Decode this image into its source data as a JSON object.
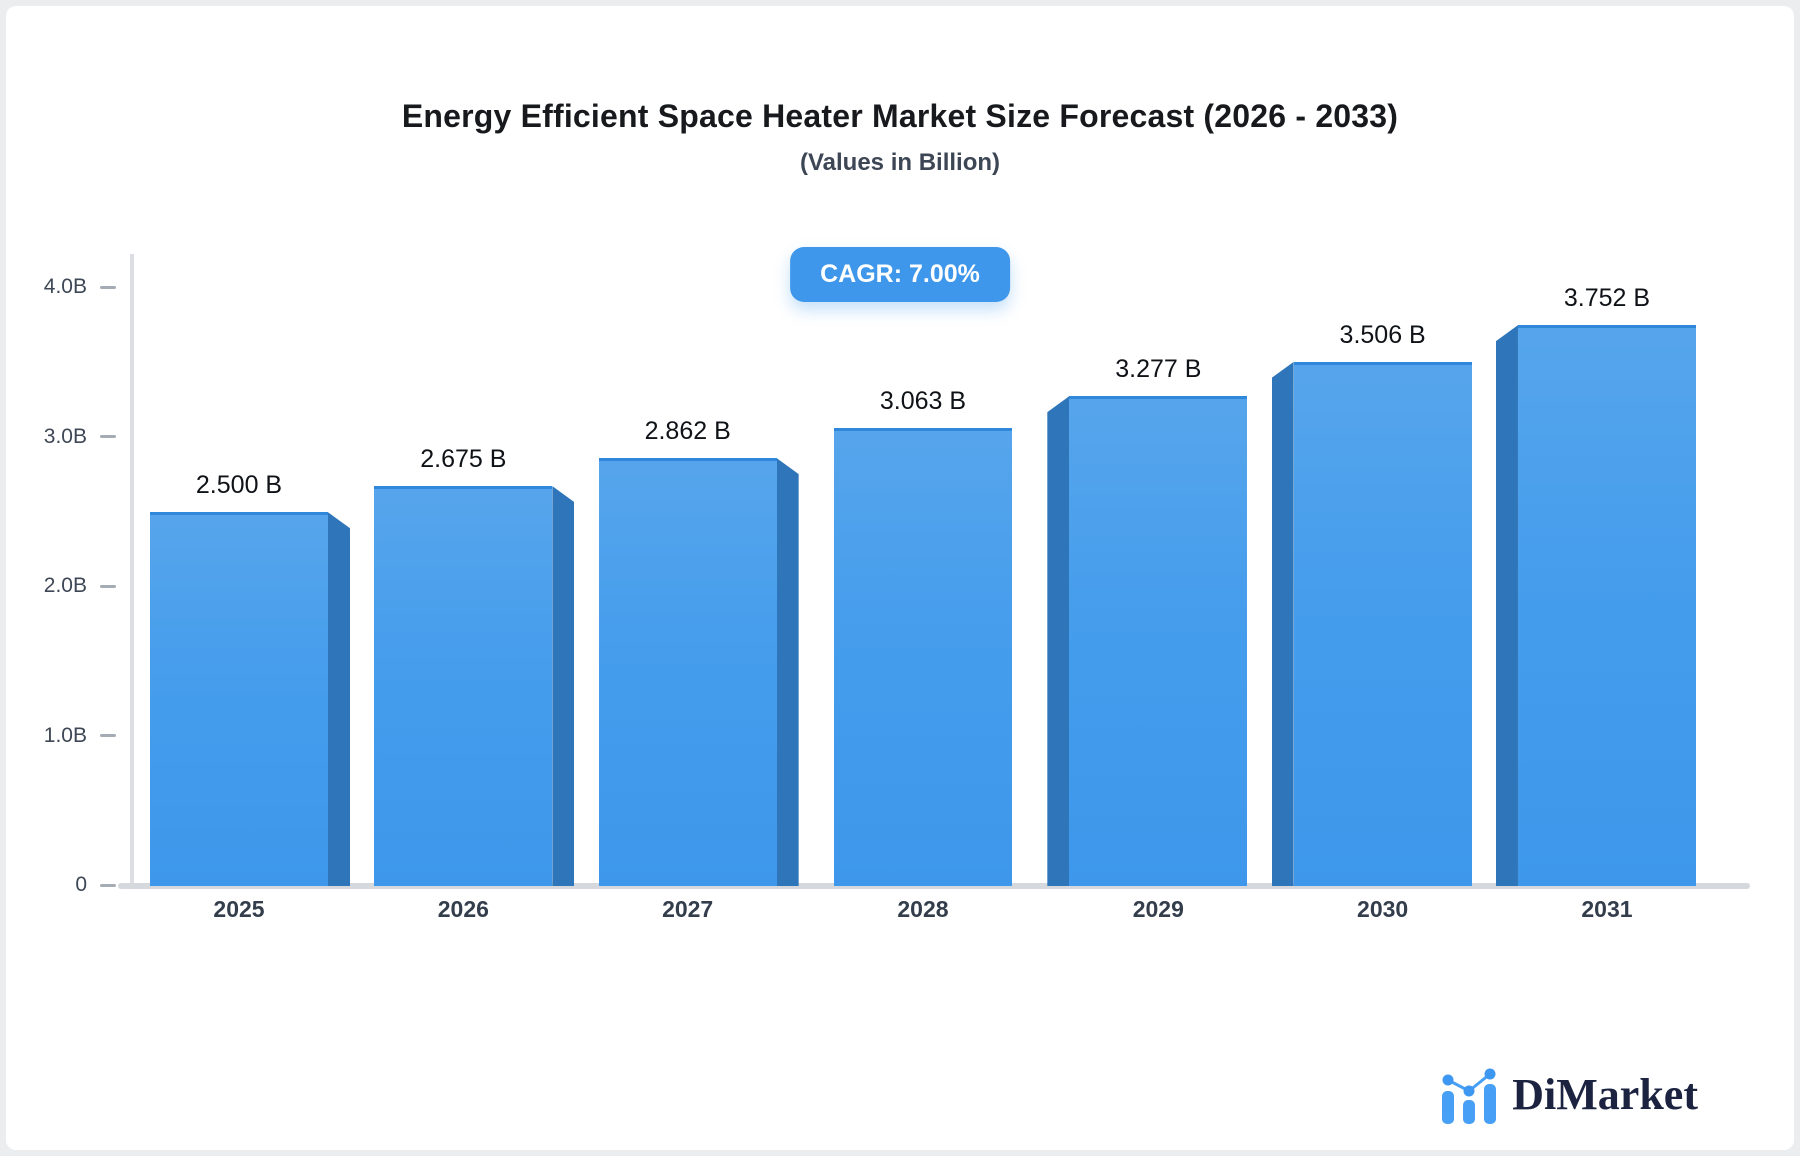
{
  "page": {
    "background": "#ebedef",
    "card_background": "#ffffff"
  },
  "chart_data": {
    "type": "bar",
    "title": "Energy Efficient Space Heater Market Size Forecast (2026 - 2033)",
    "subtitle": "(Values in Billion)",
    "cagr_label": "CAGR: 7.00%",
    "categories": [
      "2025",
      "2026",
      "2027",
      "2028",
      "2029",
      "2030",
      "2031"
    ],
    "values": [
      2.5,
      2.675,
      2.862,
      3.063,
      3.277,
      3.506,
      3.752
    ],
    "bar_labels": [
      "2.500 B",
      "2.675 B",
      "2.862 B",
      "3.063 B",
      "3.277 B",
      "3.506 B",
      "3.752 B"
    ],
    "unit": "Billion",
    "ylim": [
      0,
      4.0
    ],
    "yticks": [
      {
        "value": 4.0,
        "label": "4.0B"
      },
      {
        "value": 3.0,
        "label": "3.0B"
      },
      {
        "value": 2.0,
        "label": "2.0B"
      },
      {
        "value": 1.0,
        "label": "1.0B"
      },
      {
        "value": 0.0,
        "label": "0"
      }
    ],
    "bevel_sides": [
      "right",
      "right",
      "right",
      "none",
      "left",
      "left",
      "left"
    ],
    "grid": false,
    "legend": "none",
    "colors": {
      "bar_face_top": "#56a5ec",
      "bar_face_bottom": "#3e97eb",
      "bar_top_edge": "#2f88da",
      "bar_side_face": "#2e76b9",
      "badge_background": "#3e97ea",
      "badge_text": "#ffffff",
      "axis_line": "#dcdee3",
      "baseline": "#d5d8dc",
      "tick_label": "#3e4755",
      "value_label": "#0f1217"
    }
  },
  "branding": {
    "logo_text": "DiMarket",
    "logo_icon": "bar-chart-logo-icon",
    "logo_text_color": "#1b2340",
    "logo_icon_color": "#47a0f5"
  }
}
